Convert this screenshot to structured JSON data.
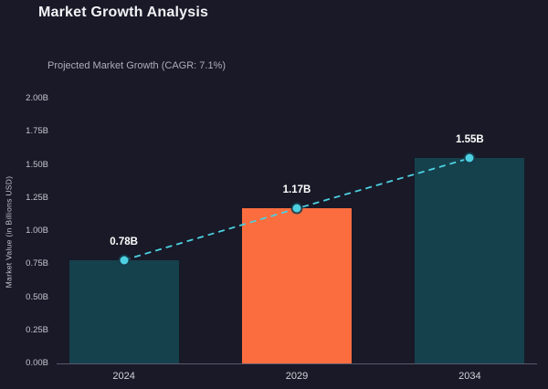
{
  "page": {
    "title": "Market Growth Analysis",
    "subtitle": "Projected Market Growth (CAGR: 7.1%)"
  },
  "chart_data": {
    "type": "bar",
    "title": "Market Growth Analysis",
    "subtitle": "Projected Market Growth (CAGR: 7.1%)",
    "categories": [
      "2024",
      "2029",
      "2034"
    ],
    "values": [
      0.78,
      1.17,
      1.55
    ],
    "value_labels": [
      "0.78B",
      "1.17B",
      "1.55B"
    ],
    "bar_colors": [
      "#15414d",
      "#fb6d3f",
      "#15414d"
    ],
    "line_color": "#4dd0e1",
    "marker_color": "#4dd0e1",
    "trendline_style": "dashed",
    "xlabel": "",
    "ylabel": "Market Value (in Billions USD)",
    "ylim": [
      0,
      2.0
    ],
    "ytick_step": 0.25,
    "ytick_suffix": "B",
    "ytick_labels": [
      "0.00B",
      "0.25B",
      "0.50B",
      "0.75B",
      "1.00B",
      "1.25B",
      "1.50B",
      "1.75B",
      "2.00B"
    ],
    "grid": false,
    "legend": false,
    "background": "#191927"
  }
}
